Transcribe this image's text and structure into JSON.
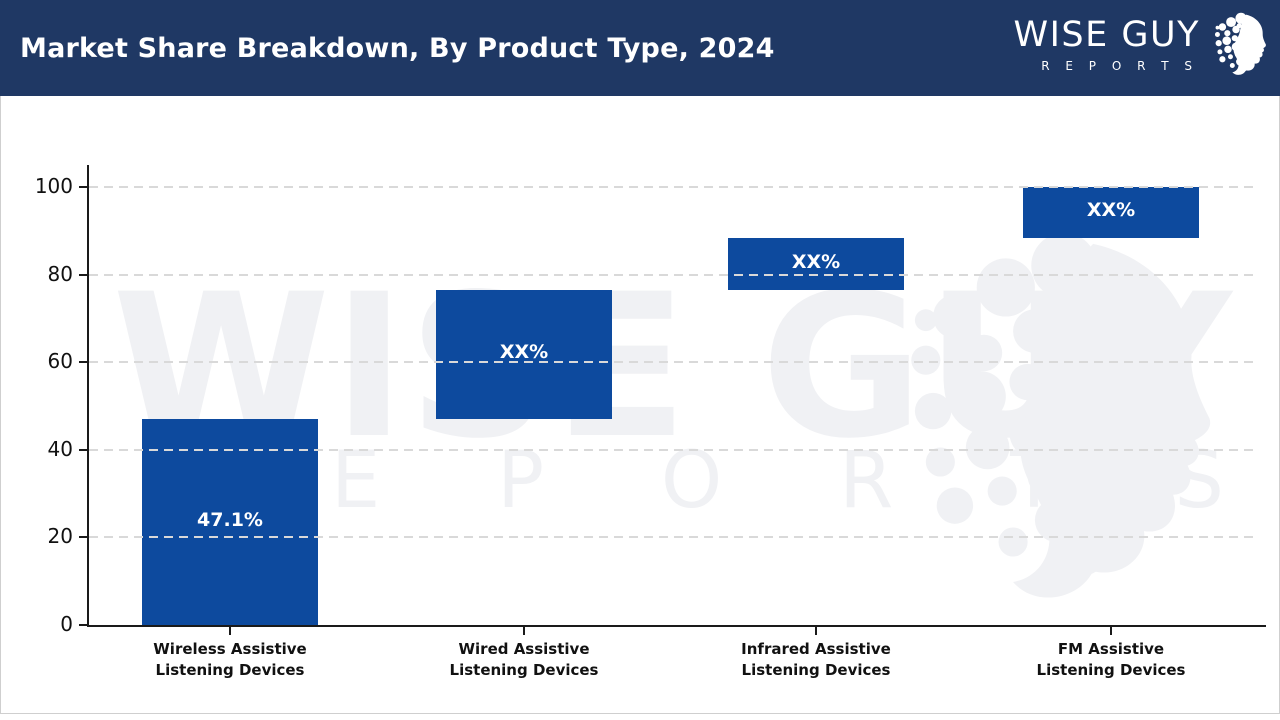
{
  "header": {
    "title": "Market Share Breakdown, By Product Type, 2024",
    "logo": {
      "line1": "WISE GUY",
      "line2": "R E P O R T S"
    }
  },
  "watermark": {
    "line1": "WISE GUY",
    "line2": "R E P O R T S"
  },
  "colors": {
    "header_bg": "#1f3864",
    "header_text": "#ffffff",
    "bar": "#0d4a9e",
    "bar_label": "#ffffff",
    "grid": "#d9d9d9",
    "axis": "#1a1a1a",
    "tick_text": "#111111",
    "watermark": "#f0f1f4",
    "card_border": "#cfcfcf"
  },
  "chart_data": {
    "type": "bar",
    "subtype": "waterfall",
    "title": "Market Share Breakdown, By Product Type, 2024",
    "categories": [
      "Wireless Assistive\nListening Devices",
      "Wired Assistive\nListening Devices",
      "Infrared Assistive\nListening Devices",
      "FM Assistive\nListening Devices"
    ],
    "bars": [
      {
        "category": "Wireless Assistive Listening Devices",
        "label": "47.1%",
        "start": 0,
        "end": 47.1,
        "value": 47.1
      },
      {
        "category": "Wired Assistive Listening Devices",
        "label": "XX%",
        "start": 47.1,
        "end": 76.5,
        "value": 29.4
      },
      {
        "category": "Infrared Assistive Listening Devices",
        "label": "XX%",
        "start": 76.5,
        "end": 88.4,
        "value": 11.9
      },
      {
        "category": "FM Assistive Listening Devices",
        "label": "XX%",
        "start": 88.4,
        "end": 100,
        "value": 11.6
      }
    ],
    "xlabel": "",
    "ylabel": "",
    "ylim": [
      0,
      100
    ],
    "yticks": [
      0,
      20,
      40,
      60,
      80,
      100
    ],
    "grid": "horizontal-dashed",
    "legend": "none"
  }
}
